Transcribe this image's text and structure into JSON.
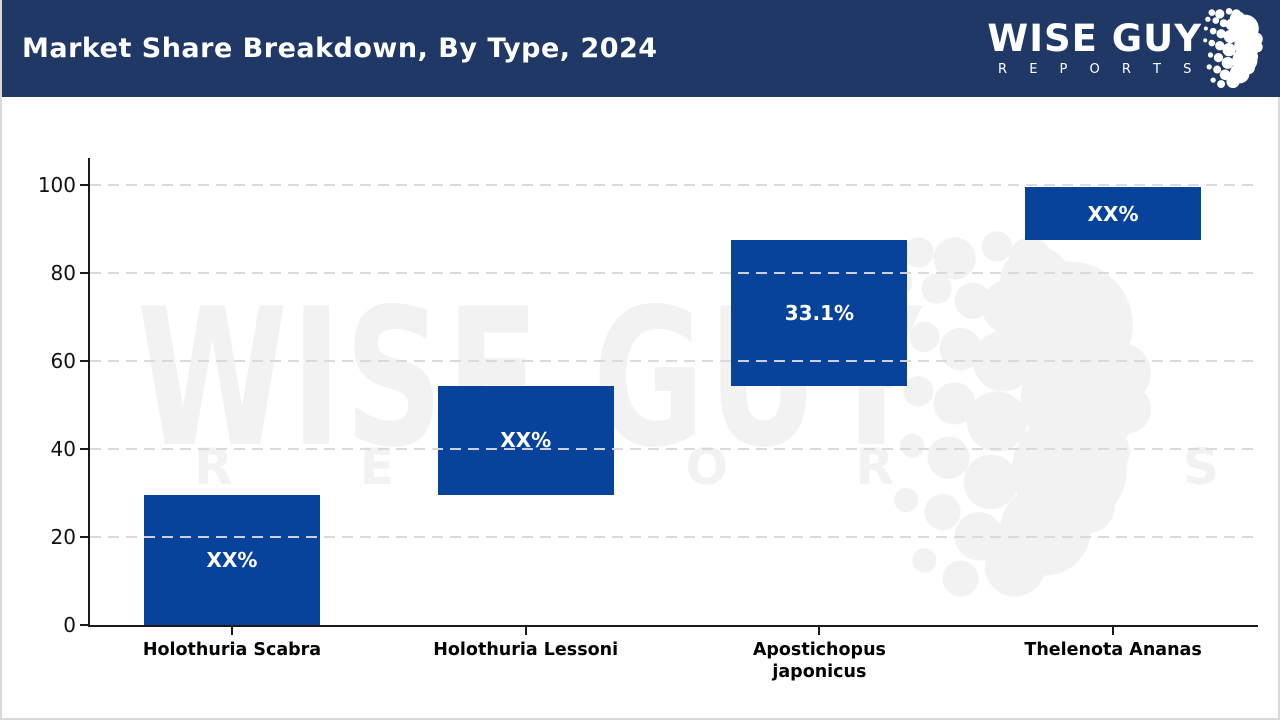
{
  "page": {
    "bg_color": "#ffffff",
    "border_color": "#d9d9d9"
  },
  "header": {
    "bg_color": "#203865",
    "title": "Market Share Breakdown, By Type, 2024",
    "logo": {
      "wordmark": "WISE GUY",
      "reports_line": "R E P O R T S",
      "face_icon": "dotted-head-profile"
    }
  },
  "watermark": {
    "wordmark": "WISE GUY",
    "reports_line": "R E P O R T S"
  },
  "chart_data": {
    "type": "bar",
    "variant": "floating-segment-waterfall",
    "title": "Market Share Breakdown, By Type, 2024",
    "categories": [
      "Holothuria Scabra",
      "Holothuria Lessoni",
      "Apostichopus japonicus",
      "Thelenota Ananas"
    ],
    "series": [
      {
        "name": "Market share (%)",
        "segments": [
          {
            "category": "Holothuria Scabra",
            "start": 0,
            "end": 29.5,
            "value": 29.5,
            "label": "XX%"
          },
          {
            "category": "Holothuria Lessoni",
            "start": 29.5,
            "end": 54.4,
            "value": 24.9,
            "label": "XX%"
          },
          {
            "category": "Apostichopus japonicus",
            "start": 54.4,
            "end": 87.5,
            "value": 33.1,
            "label": "33.1%"
          },
          {
            "category": "Thelenota Ananas",
            "start": 87.5,
            "end": 99.5,
            "value": 12.0,
            "label": "XX%"
          }
        ]
      }
    ],
    "ylim": [
      0,
      106
    ],
    "yticks": [
      0,
      20,
      40,
      60,
      80,
      100
    ],
    "xlabel": "",
    "ylabel": "",
    "grid": {
      "horizontal": true,
      "style": "dashed",
      "color": "#d9d9d9"
    },
    "legend": "none",
    "bar_color": "#07439a",
    "bar_label_color": "#ffffff",
    "axis_color": "#1a1a1a"
  }
}
